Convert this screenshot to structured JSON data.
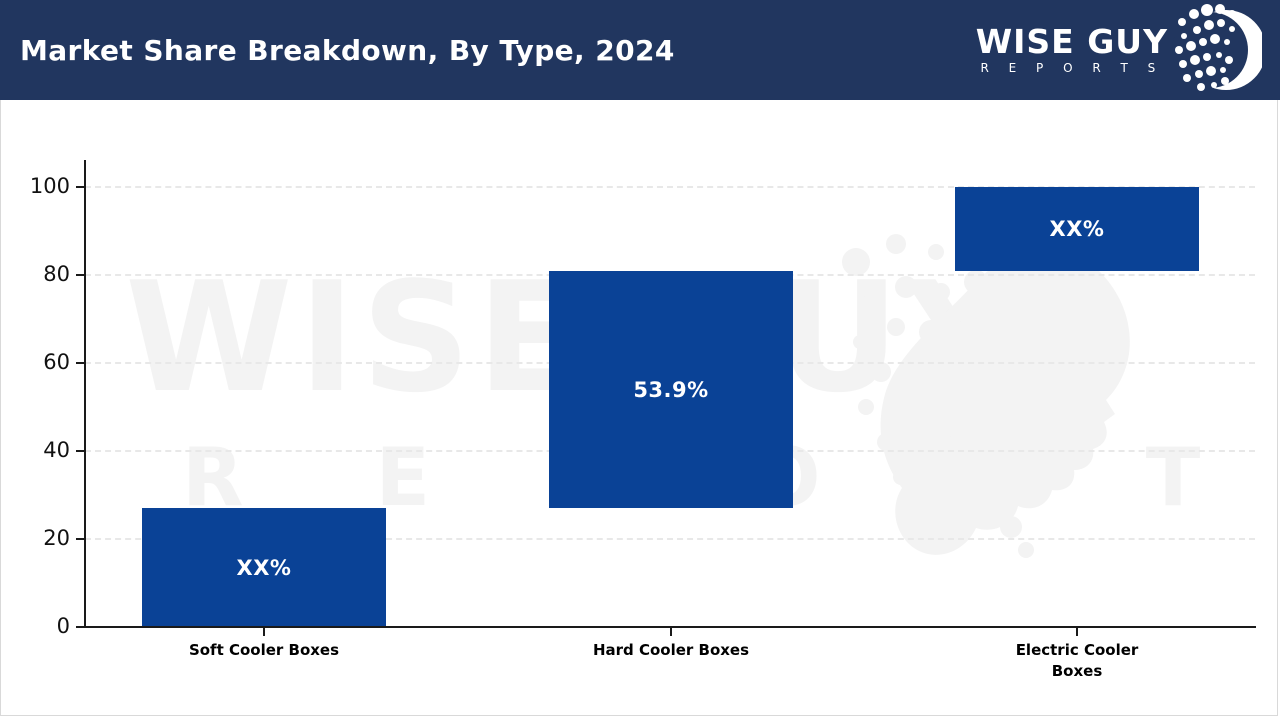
{
  "header": {
    "title": "Market Share Breakdown, By Type, 2024",
    "logo": {
      "wordmark": "WISE GUY",
      "subtext": "R E P O R T S"
    }
  },
  "watermark": {
    "line1": "WISE GUY",
    "line2": "R E P O R T S"
  },
  "colors": {
    "header_bg": "#21365F",
    "bar": "#0A4296",
    "bar_label": "#FFFFFF",
    "grid": "#E8E8E8",
    "axis": "#1A1A1A",
    "watermark": "#F3F3F3"
  },
  "chart_data": {
    "type": "bar",
    "subtype": "stacked-waterfall",
    "title": "Market Share Breakdown, By Type, 2024",
    "categories": [
      "Soft Cooler Boxes",
      "Hard Cooler Boxes",
      "Electric Cooler Boxes"
    ],
    "segments": [
      {
        "category": "Soft Cooler Boxes",
        "start": 0,
        "end": 27,
        "value_label": "XX%"
      },
      {
        "category": "Hard Cooler Boxes",
        "start": 27,
        "end": 80.9,
        "value_label": "53.9%"
      },
      {
        "category": "Electric Cooler Boxes",
        "start": 80.9,
        "end": 100,
        "value_label": "XX%"
      }
    ],
    "ylim": [
      0,
      100
    ],
    "yticks": [
      0,
      20,
      40,
      60,
      80,
      100
    ],
    "xlabel": "",
    "ylabel": "",
    "grid": "horizontal-dashed",
    "legend": "none",
    "bar_color": "#0A4296"
  }
}
